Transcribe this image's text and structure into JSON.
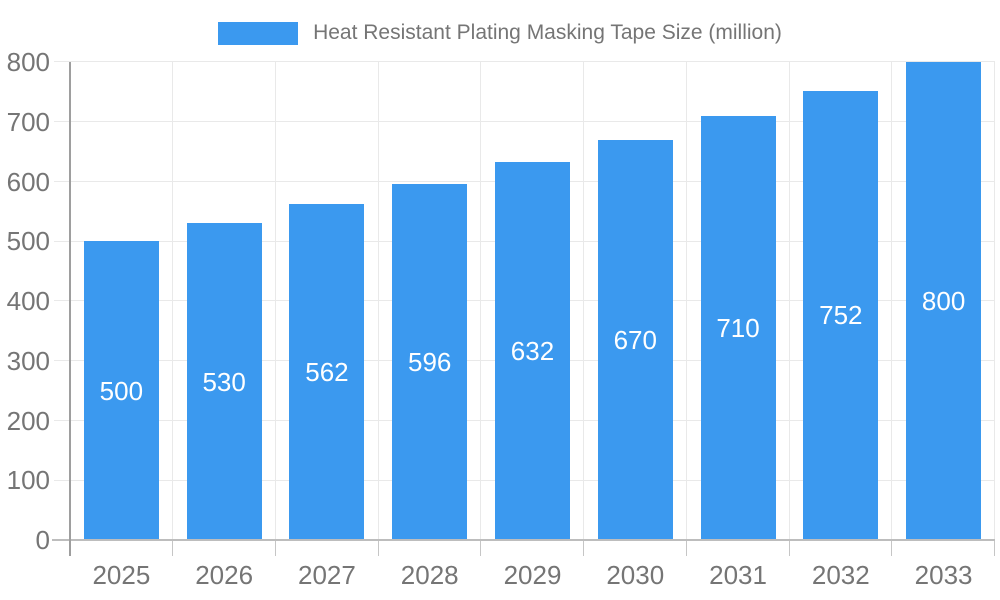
{
  "chart_data": {
    "type": "bar",
    "title": "Heat Resistant Plating Masking Tape Size (million)",
    "legend_position": "top",
    "categories": [
      "2025",
      "2026",
      "2027",
      "2028",
      "2029",
      "2030",
      "2031",
      "2032",
      "2033"
    ],
    "series": [
      {
        "name": "Heat Resistant Plating Masking Tape Size (million)",
        "values": [
          500,
          530,
          562,
          596,
          632,
          670,
          710,
          752,
          800
        ]
      }
    ],
    "value_labels": {
      "position": "inside-center",
      "color": "#ffffff"
    },
    "xlabel": "",
    "ylabel": "",
    "ylim": [
      0,
      800
    ],
    "ytick_step": 100,
    "yticks": [
      0,
      100,
      200,
      300,
      400,
      500,
      600,
      700,
      800
    ],
    "grid": {
      "horizontal": true,
      "vertical": true
    },
    "colors": {
      "bar": "#3B99EF",
      "axis_text": "#757575",
      "grid_line": "#E9E9E9",
      "y_axis_line": "#9E9E9E",
      "x_axis_line": "#BDBDBD",
      "tick": "#C6C6C6",
      "background": "#FFFFFF"
    }
  }
}
